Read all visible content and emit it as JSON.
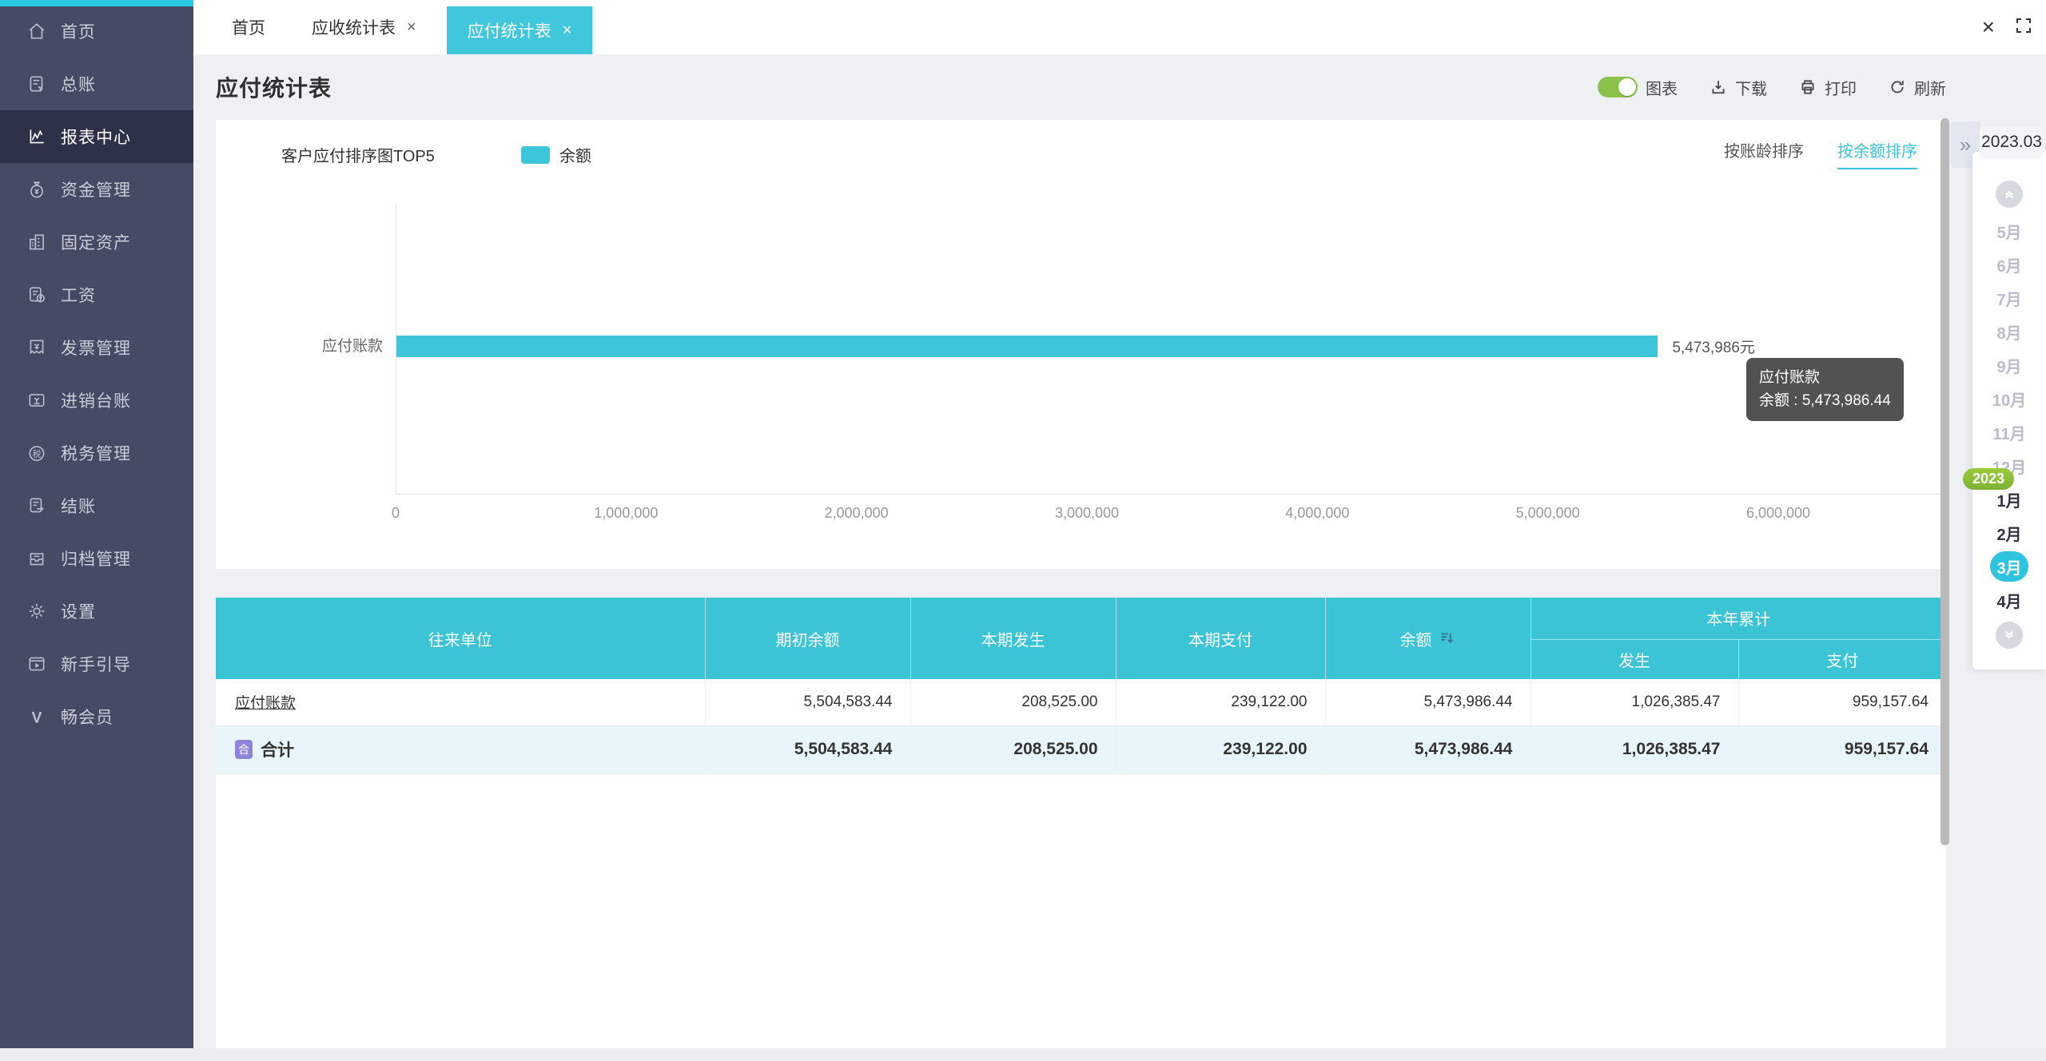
{
  "colors": {
    "accent_teal": "#3cc4d8",
    "bar_teal": "#3dc6da",
    "table_header_teal": "#3bc3d6",
    "active_tab_teal": "#41c7db",
    "toggle_green": "#8bc34a",
    "year_badge_green": "#8bc34a",
    "sidebar_bg": "#464b63",
    "sidebar_active_bg": "#2e3248",
    "total_row_bg": "#e8f6fb",
    "tooltip_bg": "#3a3a3a",
    "selected_month_cyan": "#2ec3de",
    "total_icon_purple": "#8f84dc"
  },
  "sidebar": {
    "items": [
      {
        "label": "首页",
        "icon": "home-icon"
      },
      {
        "label": "总账",
        "icon": "ledger-icon"
      },
      {
        "label": "报表中心",
        "icon": "report-center-icon",
        "active": true
      },
      {
        "label": "资金管理",
        "icon": "funds-icon"
      },
      {
        "label": "固定资产",
        "icon": "fixed-assets-icon"
      },
      {
        "label": "工资",
        "icon": "salary-icon"
      },
      {
        "label": "发票管理",
        "icon": "invoice-icon"
      },
      {
        "label": "进销台账",
        "icon": "purchase-sales-icon"
      },
      {
        "label": "税务管理",
        "icon": "tax-icon"
      },
      {
        "label": "结账",
        "icon": "closing-icon"
      },
      {
        "label": "归档管理",
        "icon": "archive-icon"
      },
      {
        "label": "设置",
        "icon": "settings-icon"
      },
      {
        "label": "新手引导",
        "icon": "guide-icon"
      },
      {
        "label": "畅会员",
        "icon": "membership-icon"
      }
    ]
  },
  "tabs": [
    {
      "label": "首页"
    },
    {
      "label": "应收统计表",
      "close": "×"
    },
    {
      "label": "应付统计表",
      "close": "×",
      "active": true
    }
  ],
  "window_controls": {
    "close": "×",
    "fullscreen": "fullscreen-icon"
  },
  "page": {
    "title": "应付统计表"
  },
  "toolbar": {
    "chart_toggle": "图表",
    "toggle_state": "on",
    "download": "下载",
    "print": "打印",
    "refresh": "刷新"
  },
  "chart_header": {
    "title": "客户应付排序图TOP5",
    "legend_label": "余额",
    "sort_age": "按账龄排序",
    "sort_balance": "按余额排序",
    "active_sort": "按余额排序"
  },
  "chart_data": {
    "type": "bar",
    "orientation": "horizontal",
    "title": "客户应付排序图TOP5",
    "legend": [
      "余额"
    ],
    "categories": [
      "应付账款"
    ],
    "series": [
      {
        "name": "余额",
        "values": [
          5473986.44
        ]
      }
    ],
    "value_labels": [
      "5,473,986元"
    ],
    "xlim": [
      0,
      6000000
    ],
    "x_ticks": [
      "0",
      "1,000,000",
      "2,000,000",
      "3,000,000",
      "4,000,000",
      "5,000,000",
      "6,000,000"
    ],
    "grid": false,
    "tooltip": {
      "title": "应付账款",
      "text": "余额 : 5,473,986.44"
    }
  },
  "table": {
    "headers": {
      "unit": "往来单位",
      "opening": "期初余额",
      "current_incurred": "本期发生",
      "current_paid": "本期支付",
      "balance": "余额",
      "ytd": "本年累计",
      "ytd_incurred": "发生",
      "ytd_paid": "支付"
    },
    "rows": [
      {
        "unit": "应付账款",
        "opening": "5,504,583.44",
        "incurred": "208,525.00",
        "paid": "239,122.00",
        "balance": "5,473,986.44",
        "ytd_incurred": "1,026,385.47",
        "ytd_paid": "959,157.64"
      }
    ],
    "total": {
      "label": "合计",
      "icon_char": "合",
      "opening": "5,504,583.44",
      "incurred": "208,525.00",
      "paid": "239,122.00",
      "balance": "5,473,986.44",
      "ytd_incurred": "1,026,385.47",
      "ytd_paid": "959,157.64"
    }
  },
  "date_panel": {
    "current": "2023.03",
    "collapse": "»",
    "year_badge": "2023",
    "months": [
      {
        "label": "5月",
        "state": "muted"
      },
      {
        "label": "6月",
        "state": "muted"
      },
      {
        "label": "7月",
        "state": "muted"
      },
      {
        "label": "8月",
        "state": "muted"
      },
      {
        "label": "9月",
        "state": "muted"
      },
      {
        "label": "10月",
        "state": "muted"
      },
      {
        "label": "11月",
        "state": "muted"
      },
      {
        "label": "12月",
        "state": "muted"
      },
      {
        "label": "1月",
        "state": "normal"
      },
      {
        "label": "2月",
        "state": "normal"
      },
      {
        "label": "3月",
        "state": "selected"
      },
      {
        "label": "4月",
        "state": "normal"
      }
    ]
  }
}
